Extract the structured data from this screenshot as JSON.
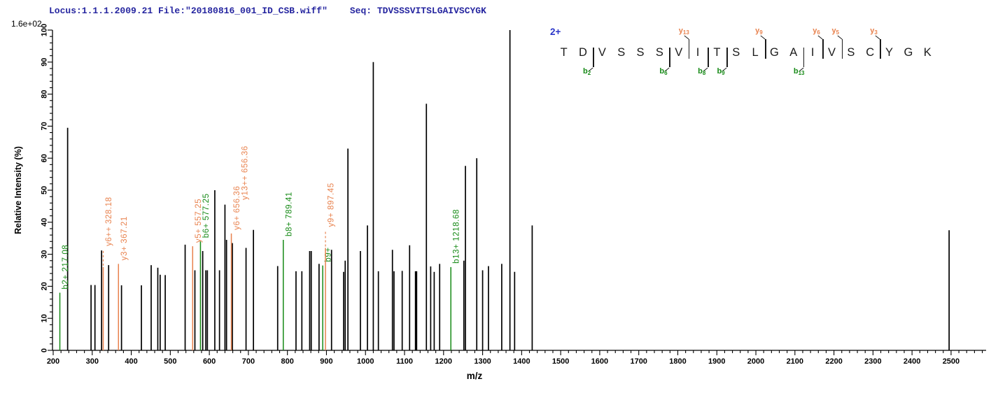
{
  "header": {
    "locus_file": "Locus:1.1.1.2009.21 File:\"20180816_001_ID_CSB.wiff\"",
    "seq_text": "Seq: TDVSSSVITSLGAIVSCYGK"
  },
  "colors": {
    "header_text": "#2626a0",
    "charge_text": "#2a35c8",
    "b_ion": "#168a16",
    "y_ion": "#e8824e",
    "peak": "#000000",
    "axis": "#000000"
  },
  "sequence_panel": {
    "charge": "2+",
    "residues": [
      "T",
      "D",
      "V",
      "S",
      "S",
      "S",
      "V",
      "I",
      "T",
      "S",
      "L",
      "G",
      "A",
      "I",
      "V",
      "S",
      "C",
      "Y",
      "G",
      "K"
    ],
    "b_marks": [
      {
        "base": "b",
        "sub": "2",
        "boundary": 2
      },
      {
        "base": "b",
        "sub": "6",
        "boundary": 6
      },
      {
        "base": "b",
        "sub": "8",
        "boundary": 8
      },
      {
        "base": "b",
        "sub": "9",
        "boundary": 9
      },
      {
        "base": "b",
        "sub": "13",
        "boundary": 13
      }
    ],
    "y_marks": [
      {
        "base": "y",
        "sub": "13",
        "boundary": 7
      },
      {
        "base": "y",
        "sub": "9",
        "boundary": 11
      },
      {
        "base": "y",
        "sub": "6",
        "boundary": 14
      },
      {
        "base": "y",
        "sub": "5",
        "boundary": 15
      },
      {
        "base": "y",
        "sub": "3",
        "boundary": 17
      }
    ]
  },
  "chart_data": {
    "type": "bar",
    "subtype": "MS/MS centroid mass spectrum (stick plot)",
    "xlabel": "m/z",
    "ylabel": "Relative  Intensity (%)",
    "y_scale_note": "1.6e+02",
    "xlim": [
      200,
      2580
    ],
    "ylim": [
      0,
      100
    ],
    "x_major_tick": 100,
    "x_minor_tick": 20,
    "x_label_max": 2500,
    "y_major_tick": 10,
    "y_minor_tick": 2,
    "grid": false,
    "annotated_peaks": [
      {
        "mz": 217.08,
        "intensity": 18,
        "ion": "b",
        "label": "b2+ 217.08"
      },
      {
        "mz": 328.18,
        "intensity": 26,
        "ion": "y",
        "label": "y6++ 328.18",
        "dashed_leader": true
      },
      {
        "mz": 367.21,
        "intensity": 27,
        "ion": "y",
        "label": "y3+ 367.21"
      },
      {
        "mz": 557.25,
        "intensity": 32.5,
        "ion": "y",
        "label": "y5+ 557.25"
      },
      {
        "mz": 577.25,
        "intensity": 34,
        "ion": "b",
        "label": "b6+ 577.25"
      },
      {
        "mz": 656.36,
        "intensity": 36.5,
        "ion": "y",
        "label": "y6+ 656.36",
        "label2": "y13++ 656.36"
      },
      {
        "mz": 789.41,
        "intensity": 34.5,
        "ion": "b",
        "label": "b8+ 789.41"
      },
      {
        "mz": 890.45,
        "intensity": 26.5,
        "ion": "b",
        "label": "b9+"
      },
      {
        "mz": 897.45,
        "intensity": 32,
        "ion": "y",
        "label": "y9+ 897.45",
        "dashed_leader": true
      },
      {
        "mz": 1218.68,
        "intensity": 26,
        "ion": "b",
        "label": "b13+ 1218.68"
      }
    ],
    "peaks": [
      [
        237,
        69.5
      ],
      [
        297,
        20.4
      ],
      [
        307,
        20.4
      ],
      [
        324,
        31.2
      ],
      [
        342,
        26.6
      ],
      [
        375,
        20.3
      ],
      [
        426,
        20.3
      ],
      [
        451,
        26.6
      ],
      [
        468,
        25.8
      ],
      [
        474,
        23.6
      ],
      [
        487,
        23.5
      ],
      [
        538,
        33
      ],
      [
        563,
        25
      ],
      [
        583,
        31
      ],
      [
        591,
        25
      ],
      [
        595,
        25
      ],
      [
        614,
        50
      ],
      [
        626,
        25
      ],
      [
        640,
        45.5
      ],
      [
        644,
        34.5
      ],
      [
        659,
        33.5
      ],
      [
        694,
        32
      ],
      [
        713,
        37.6
      ],
      [
        775,
        26.3
      ],
      [
        822,
        24.7
      ],
      [
        837,
        24.7
      ],
      [
        857,
        31
      ],
      [
        861,
        31
      ],
      [
        881,
        27
      ],
      [
        913,
        31.4
      ],
      [
        944,
        24.5
      ],
      [
        948,
        28
      ],
      [
        955,
        63
      ],
      [
        987,
        31
      ],
      [
        1005,
        39
      ],
      [
        1020,
        90
      ],
      [
        1033,
        24.7
      ],
      [
        1069,
        31.4
      ],
      [
        1073,
        24.7
      ],
      [
        1094,
        24.8
      ],
      [
        1113,
        32.8
      ],
      [
        1128,
        24.7
      ],
      [
        1131,
        24.7
      ],
      [
        1156,
        77
      ],
      [
        1167,
        26.2
      ],
      [
        1176,
        24.5
      ],
      [
        1190,
        27
      ],
      [
        1252,
        28
      ],
      [
        1256,
        57.6
      ],
      [
        1285,
        60
      ],
      [
        1300,
        25
      ],
      [
        1315,
        26.3
      ],
      [
        1349,
        27
      ],
      [
        1370,
        100
      ],
      [
        1382,
        24.5
      ],
      [
        1427,
        39
      ],
      [
        2495,
        37.5
      ]
    ]
  }
}
